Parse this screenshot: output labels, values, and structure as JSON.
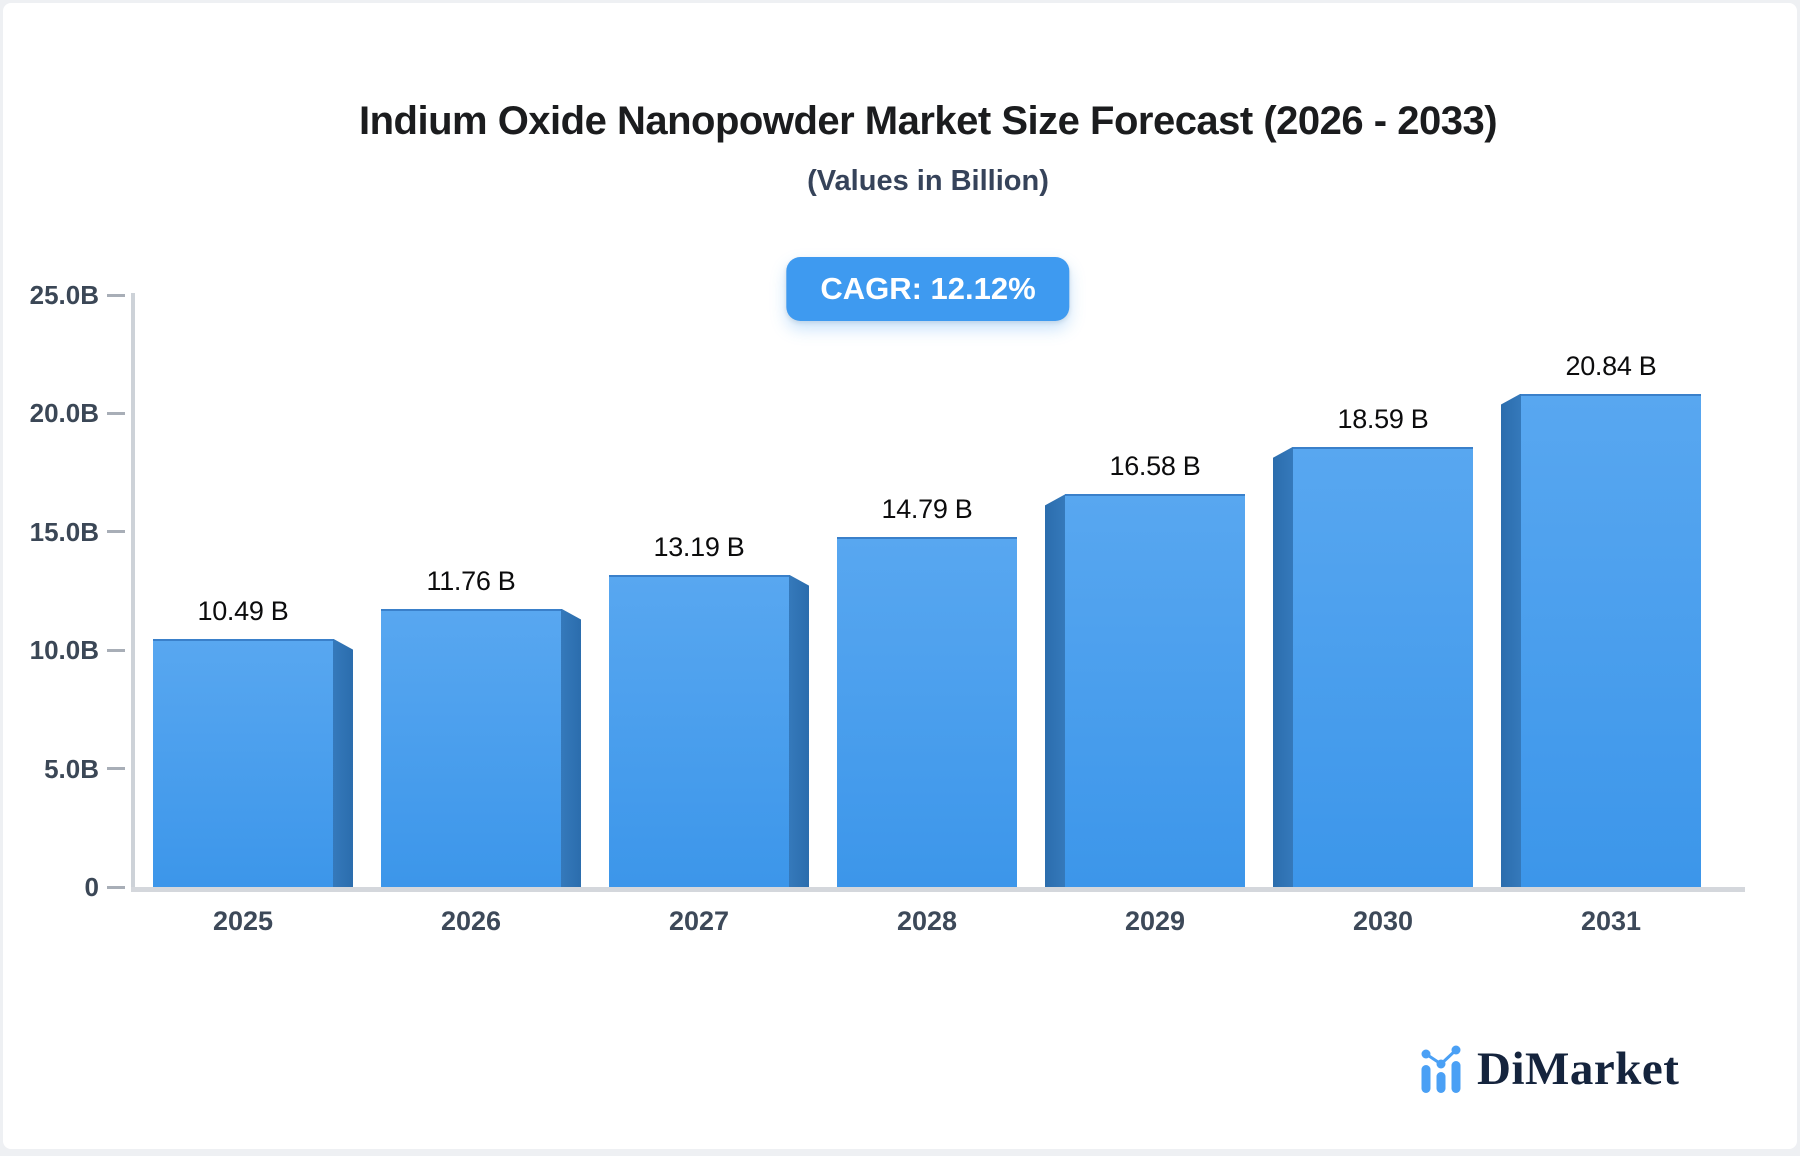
{
  "header": {
    "title": "Indium Oxide Nanopowder Market Size Forecast (2026 - 2033)",
    "subtitle": "(Values in Billion)",
    "cagr_badge": "CAGR: 12.12%",
    "badge_color": "#3e9af0"
  },
  "chart_data": {
    "type": "bar",
    "title": "Indium Oxide Nanopowder Market Size Forecast (2026 - 2033)",
    "subtitle": "(Values in Billion)",
    "categories": [
      "2025",
      "2026",
      "2027",
      "2028",
      "2029",
      "2030",
      "2031"
    ],
    "values": [
      10.49,
      11.76,
      13.19,
      14.79,
      16.58,
      18.59,
      20.84
    ],
    "bar_labels": [
      "10.49 B",
      "11.76 B",
      "13.19 B",
      "14.79 B",
      "16.58 B",
      "18.59 B",
      "20.84 B"
    ],
    "y_ticks": [
      "25.0B",
      "20.0B",
      "15.0B",
      "10.0B",
      "5.0B",
      "0"
    ],
    "y_tick_values": [
      25,
      20,
      15,
      10,
      5,
      0
    ],
    "ylim": [
      0,
      25
    ],
    "xlabel": "",
    "ylabel": "",
    "grid": false,
    "legend": false,
    "style": "3d-bars, side panels face toward center vanishing point",
    "bar_color_top": "#58a7f0",
    "bar_color_bottom": "#3c96ea",
    "bar_top_edge_color": "#3a80ca",
    "bar_side_color_dark": "#2b6dad",
    "bar_side_color_light": "#3579bb"
  },
  "annotations": {
    "cagr_label": "CAGR: 12.12%"
  },
  "logo": {
    "text": "DiMarket",
    "icon": "mini-bar-chart-icon",
    "icon_color": "#4aa0f5",
    "text_color": "#15243d"
  }
}
